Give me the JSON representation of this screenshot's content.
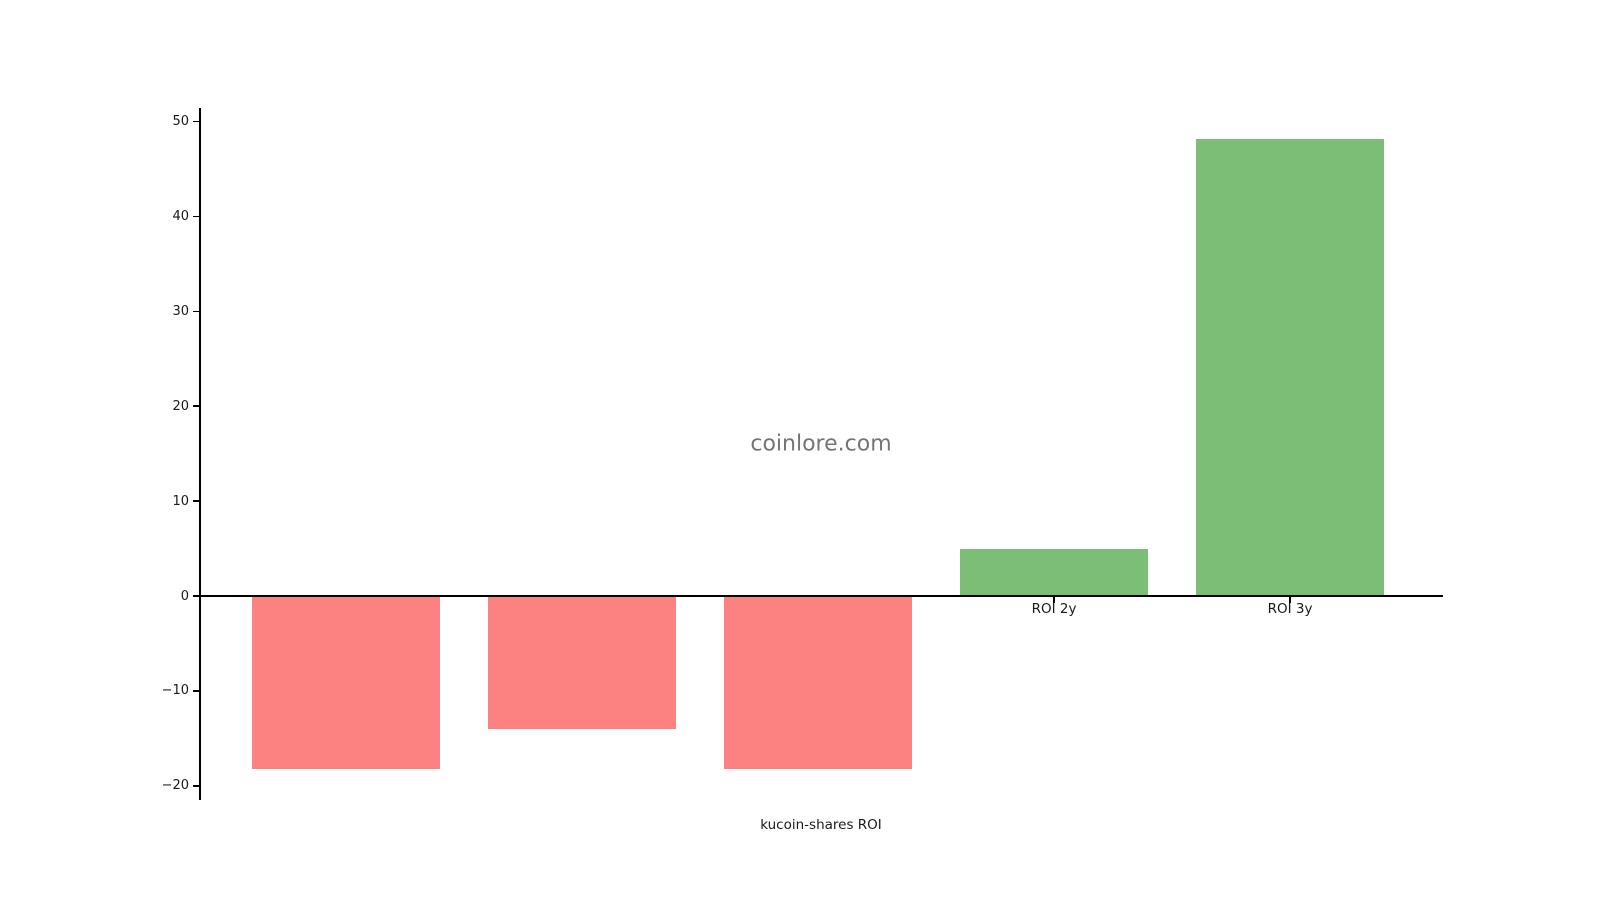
{
  "watermark": {
    "text": "coinlore.com",
    "color": "#757575"
  },
  "chart_data": {
    "type": "bar",
    "title": "",
    "xlabel": "kucoin-shares ROI",
    "ylabel": "",
    "categories": [
      "",
      "",
      "",
      "ROI 2y",
      "ROI 3y"
    ],
    "values": [
      -18.2,
      -14.0,
      -18.2,
      4.9,
      48.2
    ],
    "bar_colors": {
      "positive": "#7dbe77",
      "negative": "#fc8181"
    },
    "yticks": [
      50,
      40,
      30,
      20,
      10,
      0,
      -10,
      -20
    ],
    "ylim": [
      -21.5,
      51.4
    ],
    "grid": false,
    "legend_position": "none",
    "background_color": "#ffffff",
    "axis_color": "#000000",
    "text_color": "#1a1a1a"
  }
}
